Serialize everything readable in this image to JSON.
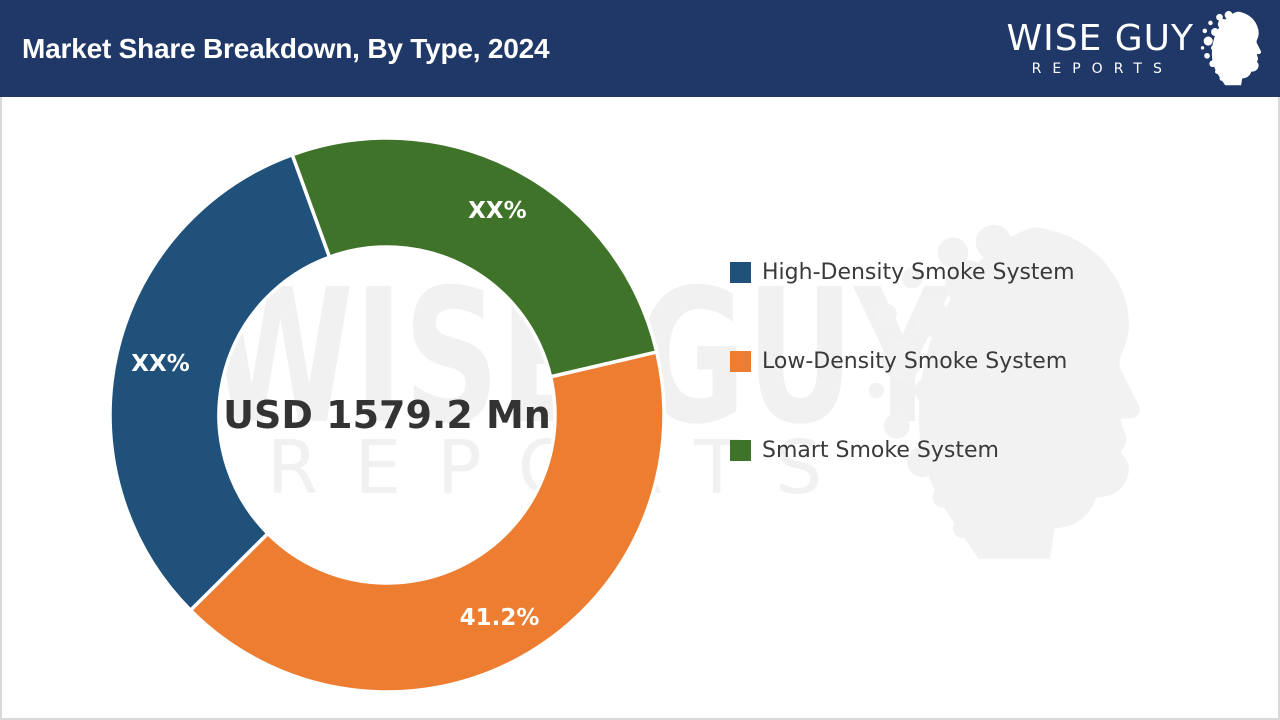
{
  "header": {
    "title": "Market Share Breakdown, By Type, 2024",
    "brand": {
      "name": "WISE GUY",
      "subname": "REPORTS"
    }
  },
  "watermark": {
    "line1": "WISE GUY",
    "line2": "REPORTS"
  },
  "chart_data": {
    "type": "pie",
    "subtype": "donut",
    "title": "Market Share Breakdown, By Type, 2024",
    "center_label": "USD 1579.2 Mn",
    "start_angle_deg": 110,
    "direction": "counterclockwise",
    "outer_radius_px": 277,
    "inner_radius_px": 168,
    "label_radius_px": 232,
    "legend_position": "right",
    "slices": [
      {
        "label": "High-Density Smoke System",
        "display_value": "XX%",
        "value_pct": 31.9,
        "color": "#1F517B"
      },
      {
        "label": "Low-Density Smoke System",
        "display_value": "41.2%",
        "value_pct": 41.2,
        "color": "#ED7D31"
      },
      {
        "label": "Smart Smoke System",
        "display_value": "XX%",
        "value_pct": 26.9,
        "color": "#40732A"
      }
    ]
  },
  "colors": {
    "header_bg": "#1F3868",
    "header_text": "#FFFFFF",
    "center_text": "#333333",
    "legend_text": "#3A3A3A",
    "slice_label_text": "#FFFFFF",
    "slice_gap": "#FFFFFF",
    "watermark_text": "#F1F1F1",
    "watermark_face": "#F2F2F2",
    "page_border": "#D9D9D9"
  }
}
